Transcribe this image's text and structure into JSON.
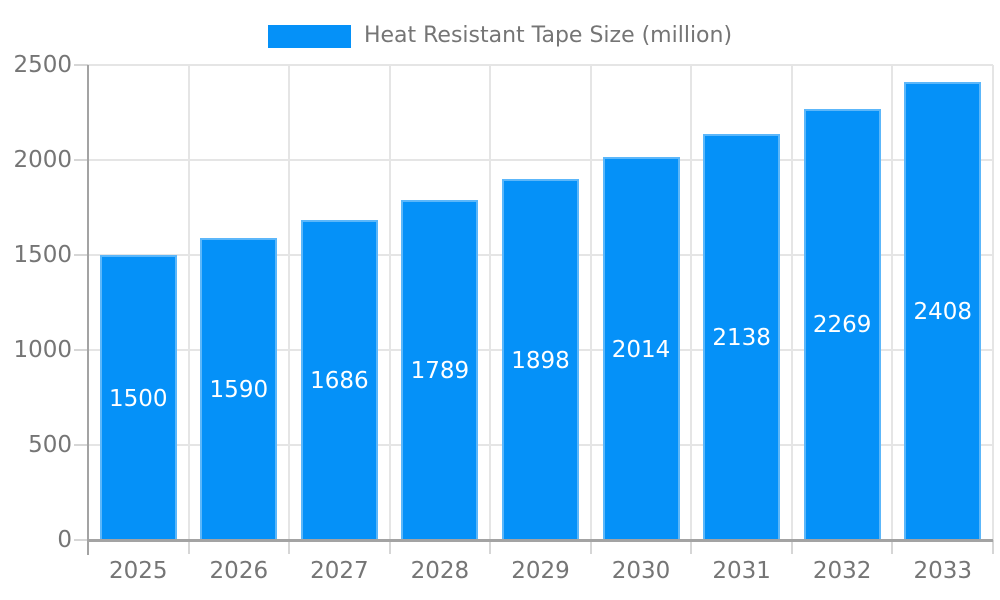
{
  "chart_data": {
    "type": "bar",
    "title": "Heat Resistant Tape Size (million)",
    "categories": [
      "2025",
      "2026",
      "2027",
      "2028",
      "2029",
      "2030",
      "2031",
      "2032",
      "2033"
    ],
    "values": [
      1500,
      1590,
      1686,
      1789,
      1898,
      2014,
      2138,
      2269,
      2408
    ],
    "xlabel": "",
    "ylabel": "",
    "ylim": [
      0,
      2500
    ],
    "yticks": [
      0,
      500,
      1000,
      1500,
      2000,
      2500
    ],
    "grid": true,
    "value_labels": "centered-inside-bars",
    "legend_position": "top-center",
    "colors": {
      "bar": "#0591f8",
      "value_label_text": "#ffffff",
      "tick_label_text": "#757575",
      "legend_text": "#757575",
      "gridline": "#e5e5e5",
      "axis_line": "#a3a3a3",
      "tick_mark": "#d6d6d6",
      "background": "#ffffff"
    }
  }
}
